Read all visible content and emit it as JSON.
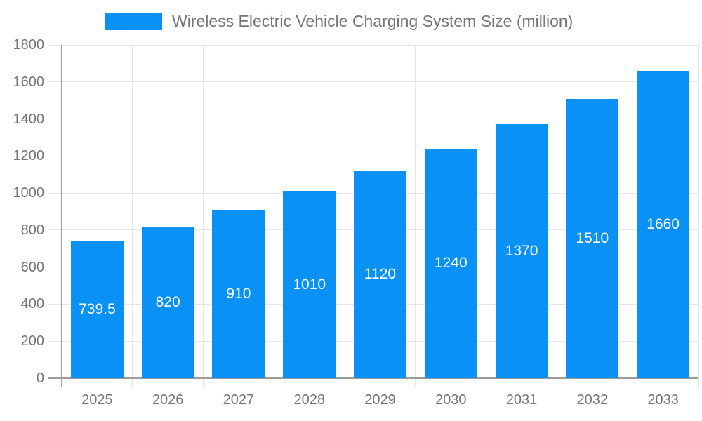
{
  "chart_data": {
    "type": "bar",
    "title": "Wireless Electric Vehicle Charging System Size (million)",
    "categories": [
      "2025",
      "2026",
      "2027",
      "2028",
      "2029",
      "2030",
      "2031",
      "2032",
      "2033"
    ],
    "values": [
      739.5,
      820,
      910,
      1010,
      1120,
      1240,
      1370,
      1510,
      1660
    ],
    "bar_labels": [
      "739.5",
      "820",
      "910",
      "1010",
      "1120",
      "1240",
      "1370",
      "1510",
      "1660"
    ],
    "xlabel": "",
    "ylabel": "",
    "ylim": [
      0,
      1800
    ],
    "ytick_step": 200,
    "ytick_labels": [
      "0",
      "200",
      "400",
      "600",
      "800",
      "1000",
      "1200",
      "1400",
      "1600",
      "1800"
    ],
    "grid": true,
    "legend_position": "top",
    "colors": {
      "bar": "#0991f5",
      "bar_label": "#ffffff",
      "axis_text": "#757575",
      "title_text": "#757575",
      "gridline": "#e6e6e6",
      "axis_line": "#9b9b9b",
      "background": "#ffffff"
    }
  }
}
